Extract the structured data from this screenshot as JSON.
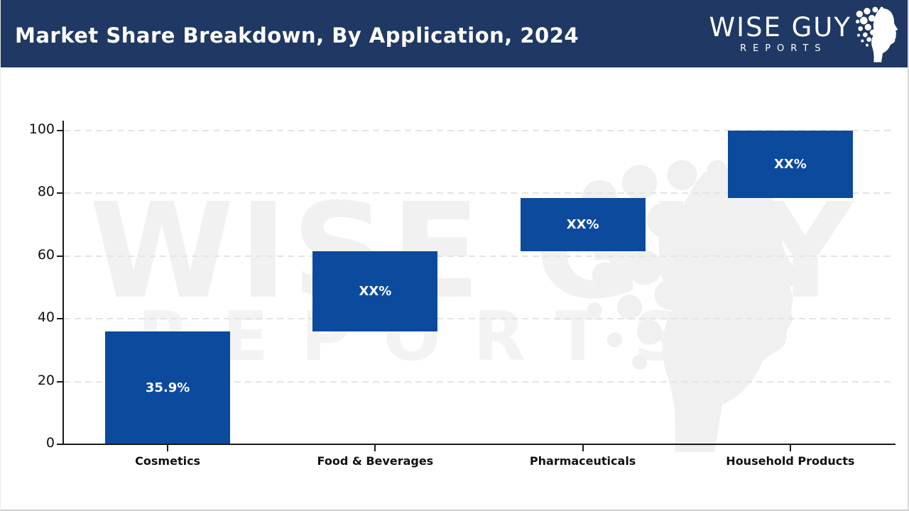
{
  "header": {
    "title": "Market Share Breakdown, By Application, 2024",
    "bg_color": "#1f3864",
    "logo": {
      "line1": "WISE GUY",
      "line2": "REPORTS"
    }
  },
  "watermark": {
    "line1": "WISE GUY",
    "line2": "REPORTS"
  },
  "chart_data": {
    "type": "bar",
    "variant": "waterfall-floating-bars",
    "title": "Market Share Breakdown, By Application, 2024",
    "categories": [
      "Cosmetics",
      "Food & Beverages",
      "Pharmaceuticals",
      "Household Products"
    ],
    "segments": [
      {
        "category": "Cosmetics",
        "start": 0,
        "end": 35.9,
        "label": "35.9%"
      },
      {
        "category": "Food & Beverages",
        "start": 35.9,
        "end": 61.5,
        "label": "XX%"
      },
      {
        "category": "Pharmaceuticals",
        "start": 61.5,
        "end": 78.6,
        "label": "XX%"
      },
      {
        "category": "Household Products",
        "start": 78.6,
        "end": 100,
        "label": "XX%"
      }
    ],
    "xlabel": "",
    "ylabel": "",
    "ylim": [
      0,
      100
    ],
    "yticks": [
      0,
      20,
      40,
      60,
      80,
      100
    ],
    "grid": "horizontal-dashed",
    "legend": "none",
    "bar_color": "#0c4a9e",
    "bar_label_color": "#ffffff",
    "axis_color": "#1a1a1a",
    "gridline_color": "#e4e4e6"
  }
}
